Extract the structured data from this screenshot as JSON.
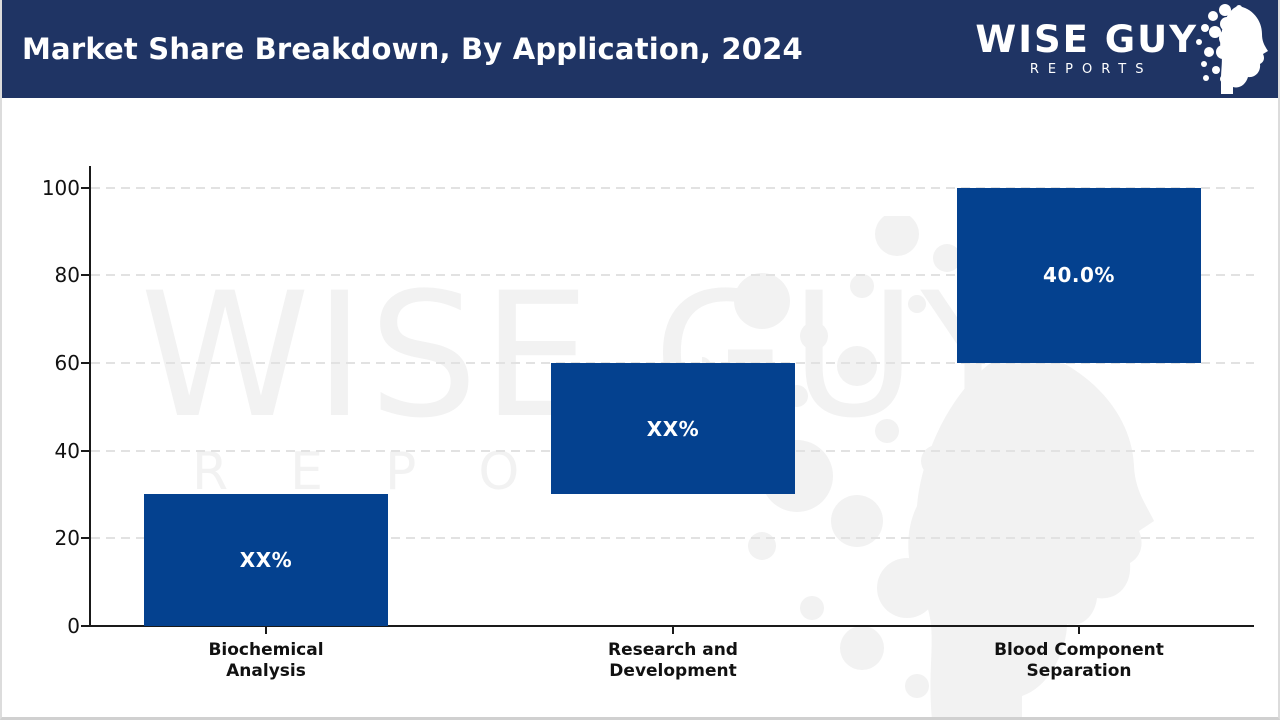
{
  "header": {
    "title": "Market Share Breakdown, By Application, 2024",
    "logo": {
      "line1": "WISE GUY",
      "line2": "REPORTS"
    }
  },
  "watermark": {
    "line1": "WISE GUY",
    "line2": "REPORTS"
  },
  "colors": {
    "header_bg": "#1f3464",
    "bar": "#04418f",
    "value_label": "#ffffff",
    "watermark": "#f2f2f2",
    "gridline": "#e2e2e2",
    "axis": "#1a1a1a"
  },
  "chart_data": {
    "type": "bar",
    "variant": "floating-segment-breakdown",
    "title": "Market Share Breakdown, By Application, 2024",
    "categories": [
      "Biochemical Analysis",
      "Research and Development",
      "Blood Component Separation"
    ],
    "category_label_lines": [
      [
        "Biochemical",
        "Analysis"
      ],
      [
        "Research and",
        "Development"
      ],
      [
        "Blood Component",
        "Separation"
      ]
    ],
    "bars": [
      {
        "category": "Biochemical Analysis",
        "start": 0,
        "end": 30,
        "value_label": "XX%"
      },
      {
        "category": "Research and Development",
        "start": 30,
        "end": 60,
        "value_label": "XX%"
      },
      {
        "category": "Blood Component Separation",
        "start": 60,
        "end": 100,
        "value_label": "40.0%"
      }
    ],
    "xlabel": "",
    "ylabel": "",
    "yticks": [
      0,
      20,
      40,
      60,
      80,
      100
    ],
    "ylim": [
      0,
      105
    ],
    "grid": "horizontal-dashed",
    "legend": "none",
    "bar_color": "#04418f"
  }
}
